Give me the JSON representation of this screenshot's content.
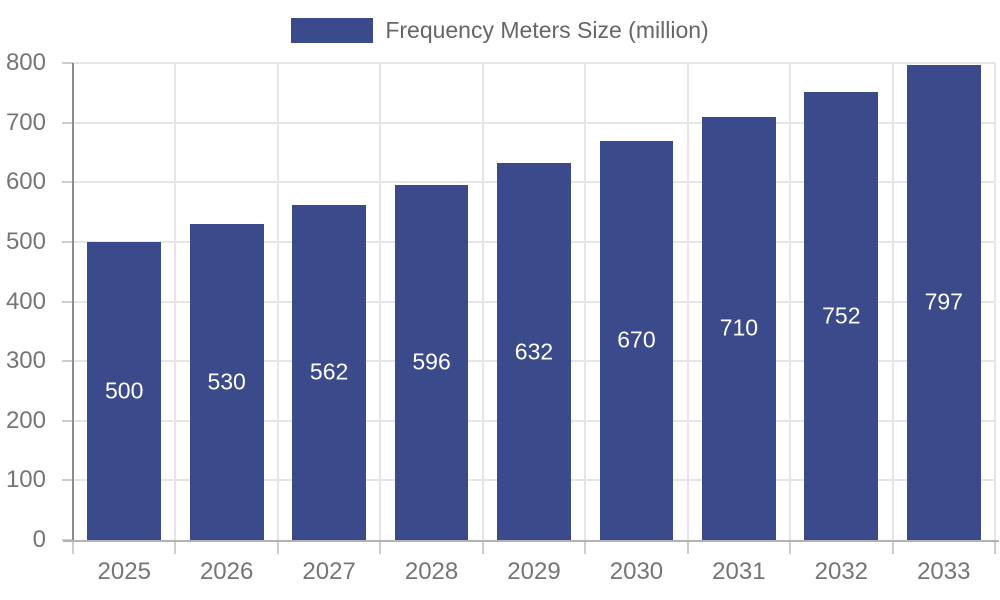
{
  "chart_data": {
    "type": "bar",
    "title": "Frequency Meters Size (million)",
    "legend_position": "top",
    "categories": [
      "2025",
      "2026",
      "2027",
      "2028",
      "2029",
      "2030",
      "2031",
      "2032",
      "2033"
    ],
    "series": [
      {
        "name": "Frequency Meters Size (million)",
        "values": [
          500,
          530,
          562,
          596,
          632,
          670,
          710,
          752,
          797
        ]
      }
    ],
    "xlabel": "",
    "ylabel": "",
    "ylim": [
      0,
      800
    ],
    "ytick_step": 100,
    "yticks": [
      "0",
      "100",
      "200",
      "300",
      "400",
      "500",
      "600",
      "700",
      "800"
    ],
    "grid": true,
    "colors": {
      "bar": "#3b4a8b",
      "bar_value_label": "#ffffff",
      "legend_text": "#666666",
      "axis_text": "#757575",
      "grid_line": "#e6e6e6",
      "y_axis_line": "#8c8c8c",
      "x_axis_line": "#b3b3b3",
      "tick": "#cccccc",
      "background": "#ffffff"
    }
  }
}
